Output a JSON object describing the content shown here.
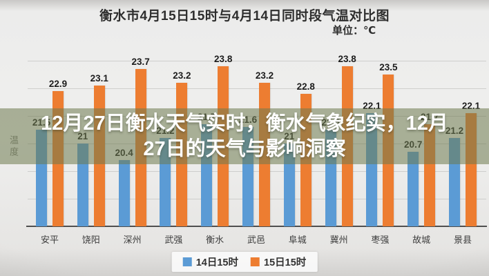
{
  "title": "衡水市4月15日15时与4月14日同时段气温对比图",
  "unit_label": "单位：℃",
  "y_axis_label": "温度",
  "overlay": {
    "line1": "12月27日衡水天气实时，衡水气象纪实，12月",
    "line2": "27日的天气与影响洞察"
  },
  "chart_data": {
    "type": "bar",
    "title": "衡水市4月15日15时与4月14日同时段气温对比图",
    "unit": "℃",
    "xlabel": "",
    "ylabel": "温度",
    "ylim": [
      18,
      24.5
    ],
    "grid": true,
    "legend_position": "bottom",
    "categories": [
      "安平",
      "饶阳",
      "深州",
      "武强",
      "衡水",
      "武邑",
      "阜城",
      "冀州",
      "枣强",
      "故城",
      "景县"
    ],
    "series": [
      {
        "name": "14日15时",
        "color": "#5B9BD5",
        "values": [
          21.5,
          21,
          20.4,
          21.2,
          21.7,
          21.6,
          21,
          21.5,
          22.1,
          20.7,
          21.2
        ],
        "labels": [
          "21.5",
          "21",
          "20.4",
          "21.2",
          "21.7",
          "21.6",
          "21",
          "21.5",
          "22.1",
          "20.7",
          "21.2"
        ]
      },
      {
        "name": "15日15时",
        "color": "#ED7D31",
        "values": [
          22.9,
          23.1,
          23.7,
          23.2,
          23.8,
          23.2,
          22.8,
          23.8,
          23.5,
          21.7,
          22.1
        ],
        "labels": [
          "22.9",
          "23.1",
          "23.7",
          "23.2",
          "23.8",
          "23.2",
          "22.8",
          "23.8",
          "23.5",
          "21.7",
          "22.1"
        ]
      }
    ]
  }
}
